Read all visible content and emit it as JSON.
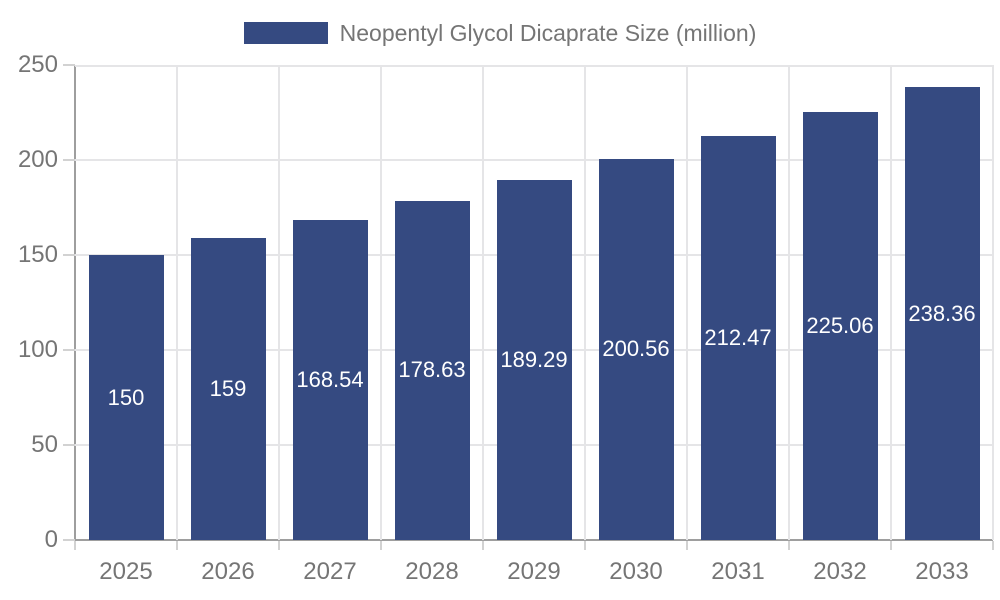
{
  "chart_data": {
    "type": "bar",
    "title": "",
    "categories": [
      "2025",
      "2026",
      "2027",
      "2028",
      "2029",
      "2030",
      "2031",
      "2032",
      "2033"
    ],
    "series": [
      {
        "name": "Neopentyl Glycol Dicaprate Size (million)",
        "values": [
          150,
          159,
          168.54,
          178.63,
          189.29,
          200.56,
          212.47,
          225.06,
          238.36
        ]
      }
    ],
    "value_labels": [
      "150",
      "159",
      "168.54",
      "178.63",
      "189.29",
      "200.56",
      "212.47",
      "225.06",
      "238.36"
    ],
    "xlabel": "",
    "ylabel": "",
    "ylim": [
      0,
      250
    ],
    "yticks": [
      0,
      50,
      100,
      150,
      200,
      250
    ],
    "grid": true,
    "legend_position": "top-center",
    "colors": {
      "bar": "#354a81",
      "axis": "#9e9e9e",
      "gridline": "#e5e5e7",
      "tick": "#d2d2d2",
      "text": "#757575",
      "value_label": "#ffffff",
      "background": "#ffffff"
    }
  }
}
